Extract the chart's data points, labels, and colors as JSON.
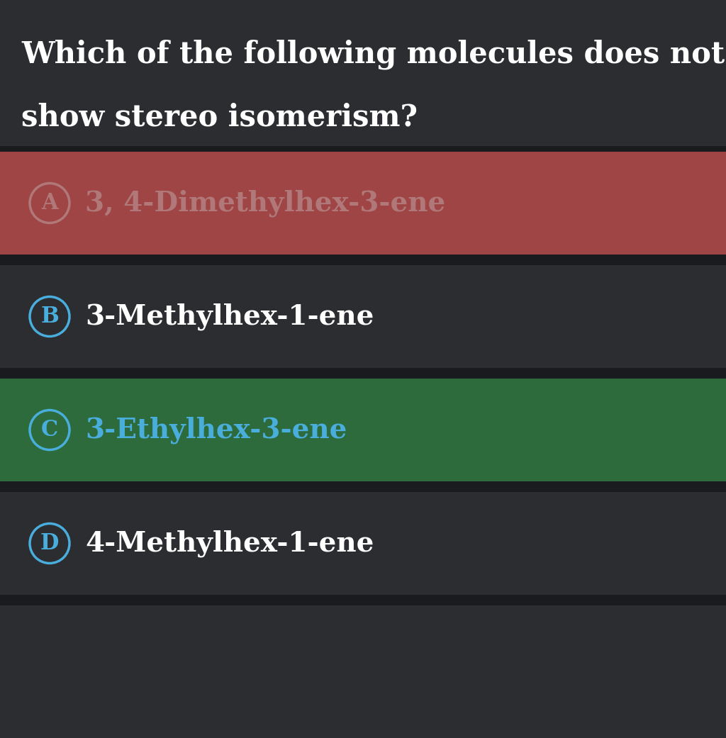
{
  "question_line1": "Which of the following molecules does not",
  "question_line2": "show stereo isomerism?",
  "options": [
    {
      "letter": "A",
      "text": "3, 4-Dimethylhex-3-ene",
      "bg_color": "#a04545",
      "letter_color": "#b07878",
      "text_color": "#b07878",
      "circle_edge": "#b07878"
    },
    {
      "letter": "B",
      "text": "3-Methylhex-1-ene",
      "bg_color": "#2b2d30",
      "letter_color": "#4aaedd",
      "text_color": "#ffffff",
      "circle_edge": "#4aaedd"
    },
    {
      "letter": "C",
      "text": "3-Ethylhex-3-ene",
      "bg_color": "#2d6b3c",
      "letter_color": "#4aaedd",
      "text_color": "#4aaedd",
      "circle_edge": "#4aaedd"
    },
    {
      "letter": "D",
      "text": "4-Methylhex-1-ene",
      "bg_color": "#2b2d30",
      "letter_color": "#4aaedd",
      "text_color": "#ffffff",
      "circle_edge": "#4aaedd"
    }
  ],
  "bg_color": "#2b2d30",
  "separator_color": "#1a1b1e",
  "question_color": "#ffffff",
  "fig_width": 10.24,
  "fig_height": 10.41,
  "dpi": 100
}
